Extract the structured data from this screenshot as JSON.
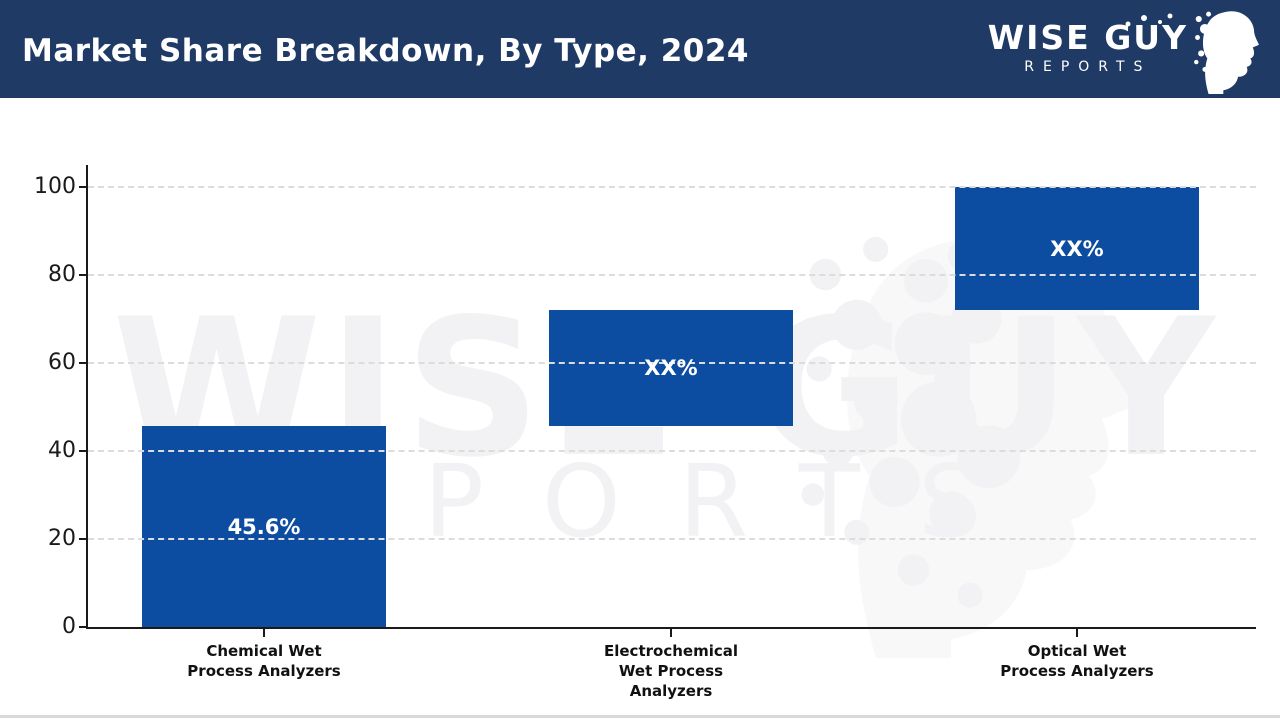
{
  "header": {
    "title": "Market Share Breakdown, By Type, 2024",
    "background_color": "#203a66",
    "logo": {
      "line1": "WISE GUY",
      "line2": "REPORTS"
    }
  },
  "watermark": {
    "line1": "WISE GUY",
    "line2": "REPORTS"
  },
  "chart_data": {
    "type": "bar",
    "subtype": "waterfall",
    "title": "Market Share Breakdown, By Type, 2024",
    "categories": [
      "Chemical Wet\nProcess Analyzers",
      "Electrochemical\nWet Process\nAnalyzers",
      "Optical Wet\nProcess Analyzers"
    ],
    "segments": [
      {
        "category": "Chemical Wet Process Analyzers",
        "start": 0,
        "end": 45.6,
        "label": "45.6%"
      },
      {
        "category": "Electrochemical Wet Process Analyzers",
        "start": 45.6,
        "end": 72,
        "label": "XX%"
      },
      {
        "category": "Optical Wet Process Analyzers",
        "start": 72,
        "end": 100,
        "label": "XX%"
      }
    ],
    "xlabel": "",
    "ylabel": "",
    "ylim": [
      0,
      100
    ],
    "yticks": [
      0,
      20,
      40,
      60,
      80,
      100
    ],
    "grid": "horizontal-dashed",
    "legend": "none",
    "bar_color": "#0c4da2",
    "bar_label_color": "#ffffff"
  }
}
